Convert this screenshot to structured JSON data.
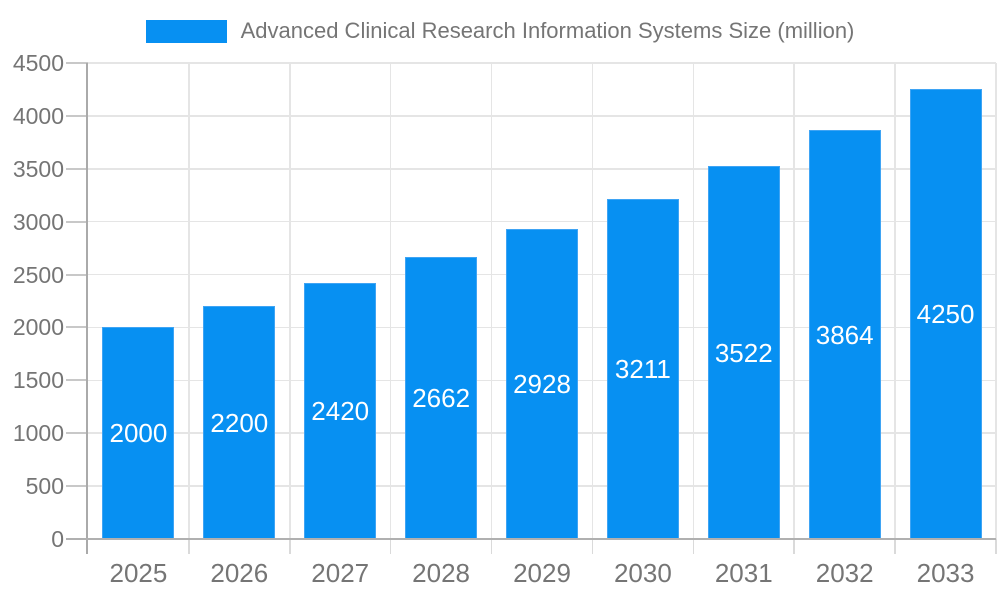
{
  "legend": {
    "label": "Advanced Clinical Research Information Systems Size (million)"
  },
  "chart_data": {
    "type": "bar",
    "title": "Advanced Clinical Research Information Systems Size (million)",
    "categories": [
      "2025",
      "2026",
      "2027",
      "2028",
      "2029",
      "2030",
      "2031",
      "2032",
      "2033"
    ],
    "values": [
      2000,
      2200,
      2420,
      2662,
      2928,
      3211,
      3522,
      3864,
      4250
    ],
    "series": [
      {
        "name": "Advanced Clinical Research Information Systems Size (million)",
        "values": [
          2000,
          2200,
          2420,
          2662,
          2928,
          3211,
          3522,
          3864,
          4250
        ]
      }
    ],
    "xlabel": "",
    "ylabel": "",
    "ylim": [
      0,
      4500
    ],
    "ytick_step": 500,
    "yticks": [
      0,
      500,
      1000,
      1500,
      2000,
      2500,
      3000,
      3500,
      4000,
      4500
    ],
    "grid": true,
    "legend_position": "top",
    "value_label_position": "inside-center",
    "colors": {
      "bar_fill": "#0790f2",
      "bar_border": "#3fa4f4",
      "value_text": "#ffffff",
      "axis_text": "#757575",
      "grid_line": "#e5e5e5",
      "axis_line": "#aaaaaa",
      "baseline": "#b0b0b0",
      "y_tick": "#c8c8c8",
      "x_tick": "#dadada",
      "background": "#ffffff"
    }
  }
}
